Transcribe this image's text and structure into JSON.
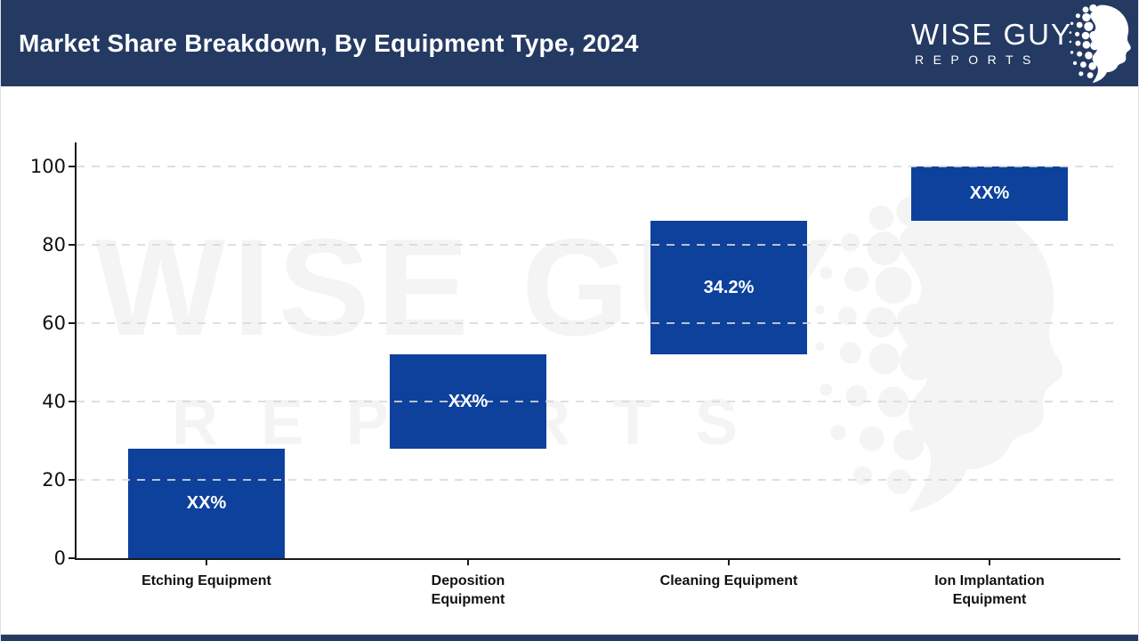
{
  "header": {
    "title": "Market Share Breakdown, By Equipment Type, 2024",
    "logo": {
      "wordmark": "WISE GUY",
      "subtext": "REPORTS"
    }
  },
  "watermark": {
    "wordmark": "WISE GUY",
    "subtext": "REPORTS"
  },
  "colors": {
    "header_bg": "#243a63",
    "bar_fill": "#0d419c",
    "grid_color": "#d9d9d9",
    "axis_color": "#1a1a1a",
    "watermark_color": "#f4f4f4",
    "text_color": "#111111",
    "bar_label_color": "#ffffff"
  },
  "chart_data": {
    "type": "bar",
    "subtype": "stacked-waterfall",
    "title": "Market Share Breakdown, By Equipment Type, 2024",
    "categories": [
      "Etching Equipment",
      "Deposition\nEquipment",
      "Cleaning Equipment",
      "Ion Implantation\nEquipment"
    ],
    "bars": [
      {
        "category": "Etching Equipment",
        "start": 0,
        "end": 28,
        "label": "XX%"
      },
      {
        "category": "Deposition Equipment",
        "start": 28,
        "end": 52,
        "label": "XX%"
      },
      {
        "category": "Cleaning Equipment",
        "start": 52,
        "end": 86.2,
        "label": "34.2%"
      },
      {
        "category": "Ion Implantation Equipment",
        "start": 86.2,
        "end": 100,
        "label": "XX%"
      }
    ],
    "yticks": [
      0,
      20,
      40,
      60,
      80,
      100
    ],
    "ylim": [
      0,
      106
    ],
    "xlabel": "",
    "ylabel": "",
    "grid": true,
    "gridlines_over_bars": true,
    "legend": "none"
  }
}
